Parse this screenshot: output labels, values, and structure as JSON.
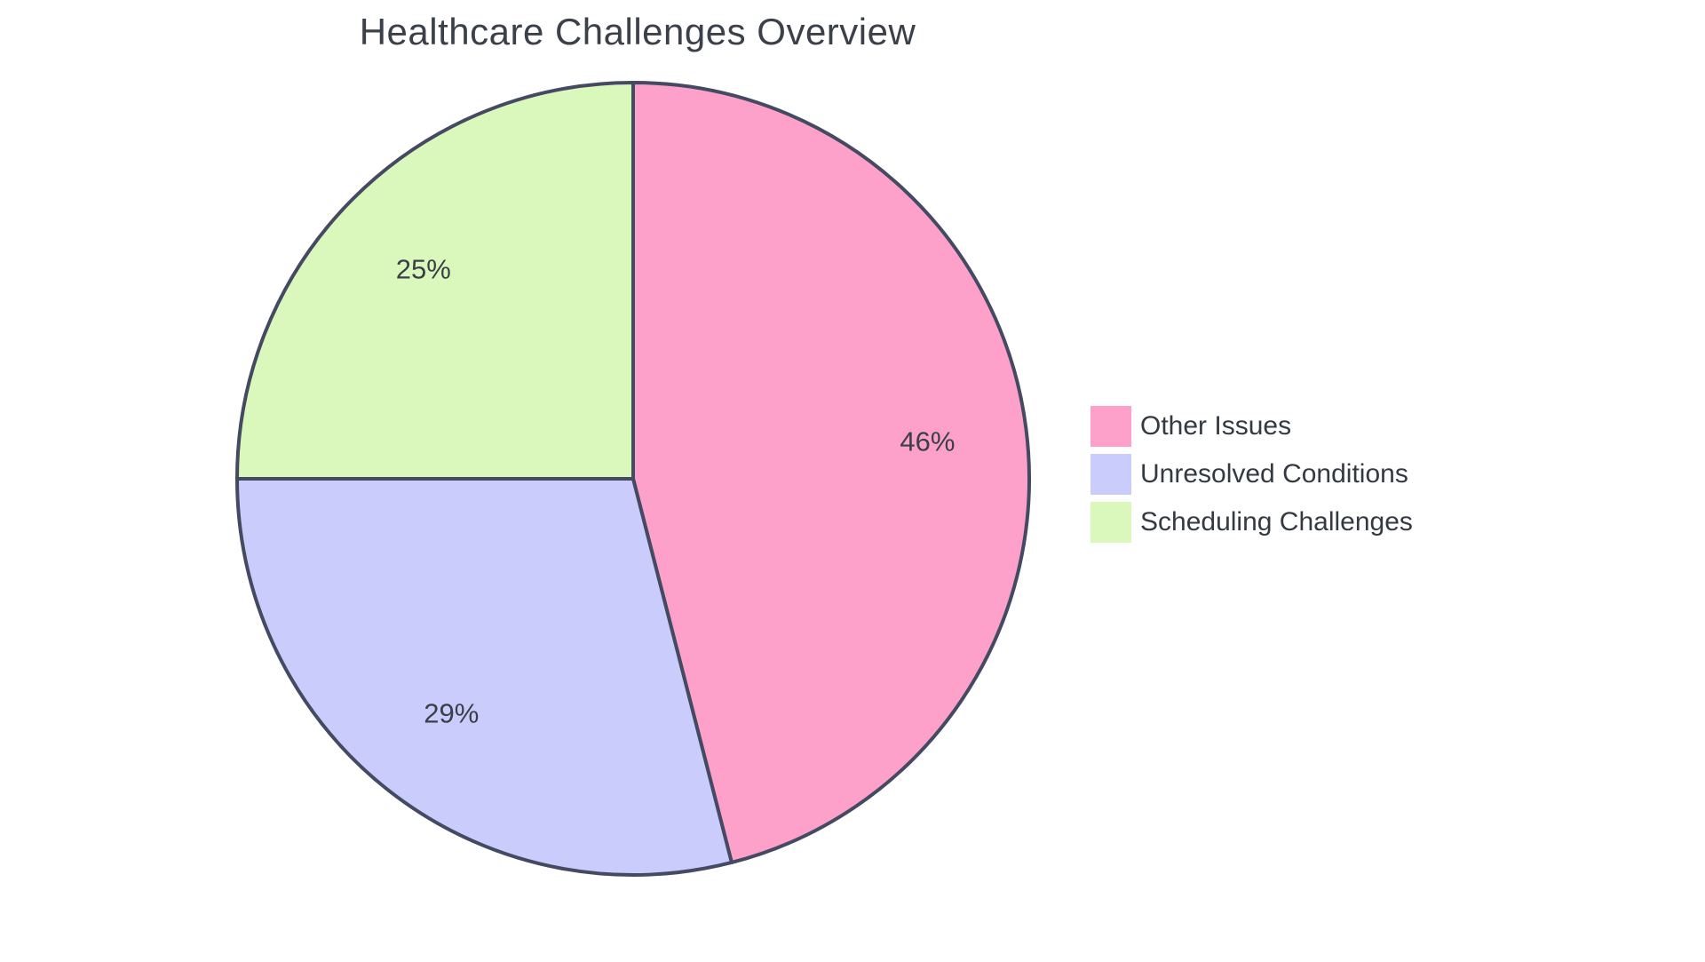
{
  "chart_data": {
    "type": "pie",
    "title": "Healthcare Challenges Overview",
    "slices": [
      {
        "label": "Other Issues",
        "value": 46,
        "percent_label": "46%",
        "color": "#FDA1CB"
      },
      {
        "label": "Unresolved Conditions",
        "value": 29,
        "percent_label": "29%",
        "color": "#CACCFB"
      },
      {
        "label": "Scheduling Challenges",
        "value": 25,
        "percent_label": "25%",
        "color": "#DBF8BC"
      }
    ],
    "start_angle_deg": 0,
    "direction": "clockwise",
    "legend_position": "right",
    "stroke_color": "#454A63",
    "stroke_width": 4,
    "label_color": "#3B4048",
    "title_color": "#3B4049",
    "background_color": "#FFFFFF"
  }
}
